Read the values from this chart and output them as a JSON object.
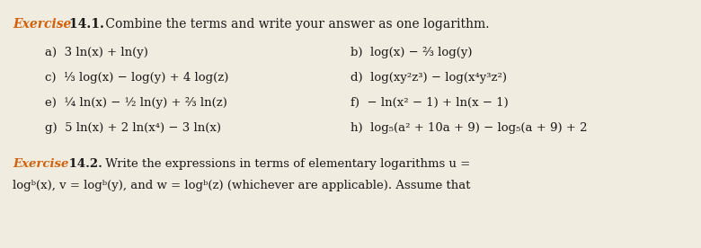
{
  "bg_color": "#f0ece0",
  "exercise_color": "#d4600a",
  "text_color": "#1a1a1a",
  "title_ex_label": "Exercise",
  "title_number": " 14.1.",
  "title_rest": " Combine the terms and write your answer as one logarithm.",
  "row_a": "a)  3 ln(x) + ln(y)",
  "row_b": "b)  log(x) − ⅔ log(y)",
  "row_c": "c)  ⅓ log(x) − log(y) + 4 log(z)",
  "row_d": "d)  log(xy²z³) − log(x⁴y³z²)",
  "row_e": "e)  ¼ ln(x) − ½ ln(y) + ⅔ ln(z)",
  "row_f": "f)  − ln(x² − 1) + ln(x − 1)",
  "row_g": "g)  5 ln(x) + 2 ln(x⁴) − 3 ln(x)",
  "row_h": "h)  log₅(a² + 10a + 9) − log₅(a + 9) + 2",
  "ex2_label": "Exercise",
  "ex2_number": " 14.2.",
  "ex2_line1": " Write the expressions in terms of elementary logarithms u =",
  "ex2_line2": "logᵇ(x), v = logᵇ(y), and w = logᵇ(z) (whichever are applicable). Assume that",
  "font_size": 9.5,
  "font_size_title": 10.0
}
